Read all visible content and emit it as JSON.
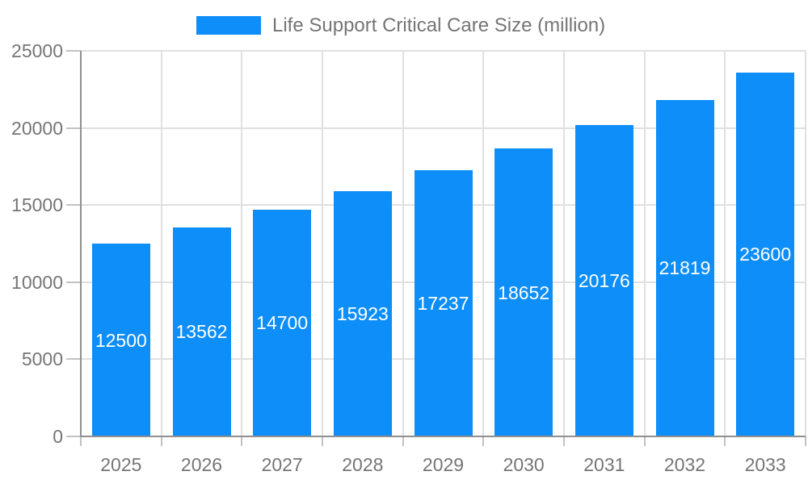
{
  "chart_data": {
    "type": "bar",
    "title": "Life Support Critical Care Size (million)",
    "categories": [
      "2025",
      "2026",
      "2027",
      "2028",
      "2029",
      "2030",
      "2031",
      "2032",
      "2033"
    ],
    "series": [
      {
        "name": "Life Support Critical Care Size (million)",
        "values": [
          12500,
          13562,
          14700,
          15923,
          17237,
          18652,
          20176,
          21819,
          23600
        ]
      }
    ],
    "values": [
      12500,
      13562,
      14700,
      15923,
      17237,
      18652,
      20176,
      21819,
      23600
    ],
    "xlabel": "",
    "ylabel": "",
    "ylim": [
      0,
      25000
    ],
    "yticks": [
      0,
      5000,
      10000,
      15000,
      20000,
      25000
    ],
    "grid": true,
    "legend_position": "top-center",
    "bar_value_labels": "inside-center"
  },
  "legend": {
    "label": "Life Support Critical Care Size (million)"
  },
  "colors": {
    "bar": "#0d8ef8",
    "bar_label_text": "#ffffff",
    "axis_text": "#757575",
    "legend_text": "#757575",
    "grid_line": "#e0e0e0",
    "tick_line": "#c2c2c2",
    "axis_line": "#8f8f8f",
    "background": "#ffffff"
  }
}
